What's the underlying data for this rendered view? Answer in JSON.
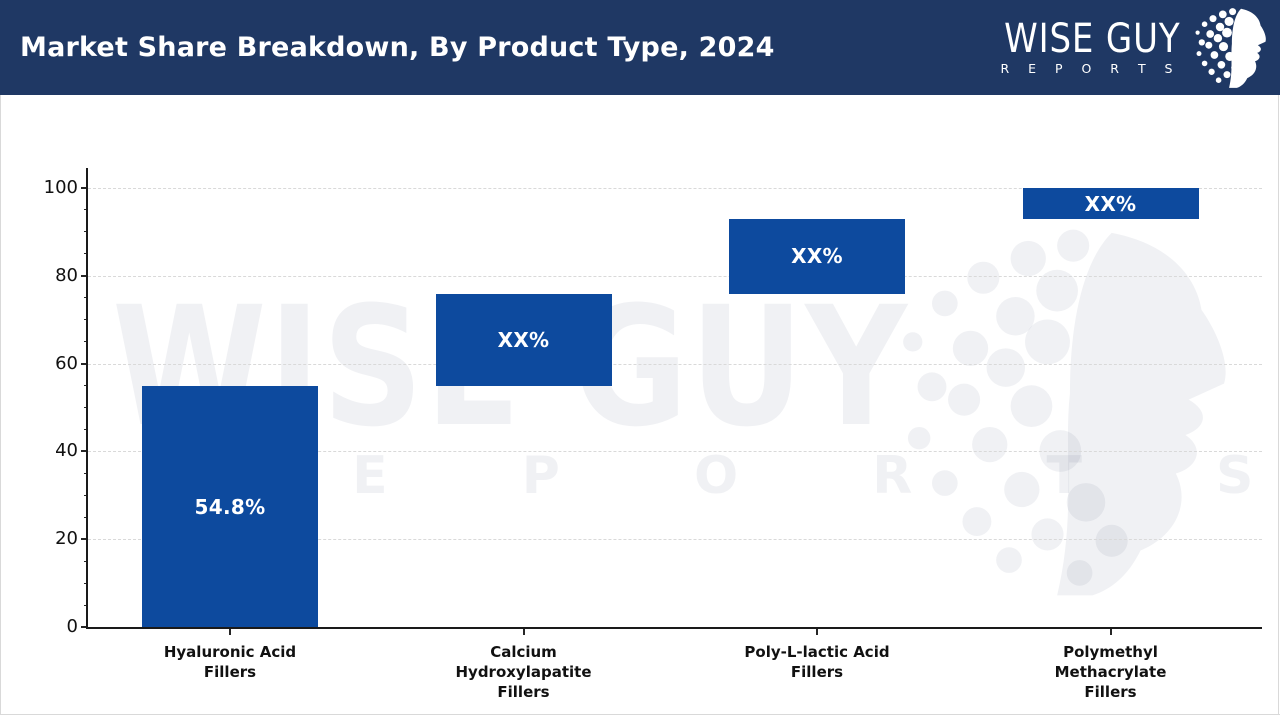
{
  "header": {
    "title": "Market Share Breakdown, By Product Type, 2024",
    "bg_color": "#1f3864",
    "brand": {
      "line1": "WISE GUY",
      "line2": "R E P O R T S"
    }
  },
  "watermark": {
    "line1": "WISE GUY",
    "line2": "R E P O R T S"
  },
  "chart_data": {
    "type": "bar",
    "variant": "waterfall",
    "title": "Market Share Breakdown, By Product Type, 2024",
    "categories": [
      "Hyaluronic Acid\nFillers",
      "Calcium\nHydroxylapatite\nFillers",
      "Poly-L-lactic Acid\nFillers",
      "Polymethyl\nMethacrylate\nFillers"
    ],
    "segments": [
      {
        "start": 0,
        "end": 54.8,
        "label": "54.8%"
      },
      {
        "start": 54.8,
        "end": 75.9,
        "label": "XX%"
      },
      {
        "start": 75.9,
        "end": 92.9,
        "label": "XX%"
      },
      {
        "start": 92.9,
        "end": 100,
        "label": "XX%"
      }
    ],
    "estimated_values": [
      54.8,
      21.1,
      17.0,
      7.1
    ],
    "value_unit": "%",
    "bar_color": "#0d4a9e",
    "yticks": [
      0,
      20,
      40,
      60,
      80,
      100
    ],
    "ylim": [
      0,
      104
    ],
    "xlabel": "",
    "ylabel": "",
    "grid": "horizontal dashed",
    "legend": "none"
  }
}
